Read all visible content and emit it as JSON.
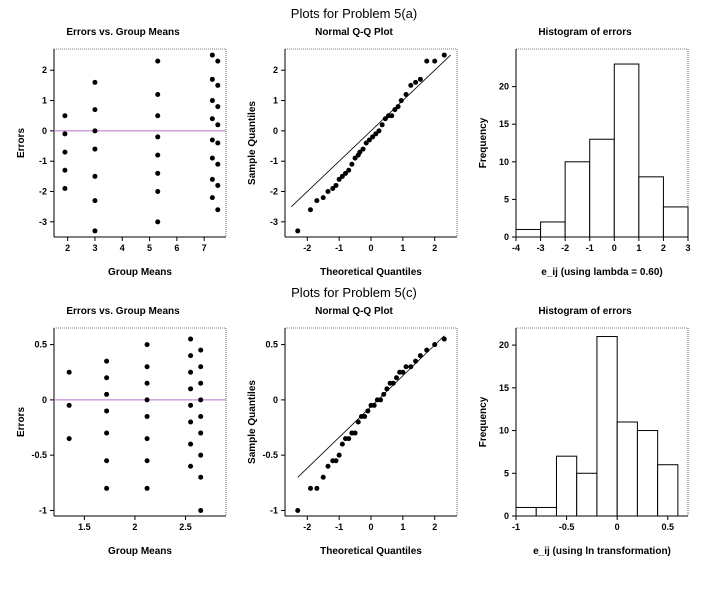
{
  "titles": {
    "section_a": "Plots for Problem 5(a)",
    "section_c": "Plots for Problem 5(c)"
  },
  "row_a": {
    "scatter": {
      "type": "scatter",
      "title": "Errors vs. Group Means",
      "xlabel": "Group Means",
      "ylabel": "Errors",
      "xlim": [
        1.5,
        7.8
      ],
      "ylim": [
        -3.5,
        2.7
      ],
      "xticks": [
        2,
        3,
        4,
        5,
        6,
        7
      ],
      "yticks": [
        -3,
        -2,
        -1,
        0,
        1,
        2
      ],
      "refline_y": 0,
      "refline_color": "#b96fcb",
      "point_color": "#000000",
      "point_r": 2.5,
      "groups_x": [
        1.9,
        3.0,
        5.3,
        7.3,
        7.5
      ],
      "points": [
        [
          1.9,
          -0.1
        ],
        [
          1.9,
          -0.7
        ],
        [
          1.9,
          0.5
        ],
        [
          1.9,
          -1.3
        ],
        [
          1.9,
          -1.9
        ],
        [
          3.0,
          1.6
        ],
        [
          3.0,
          0.7
        ],
        [
          3.0,
          0.0
        ],
        [
          3.0,
          -0.6
        ],
        [
          3.0,
          -1.5
        ],
        [
          3.0,
          -2.3
        ],
        [
          3.0,
          -3.3
        ],
        [
          5.3,
          2.3
        ],
        [
          5.3,
          1.2
        ],
        [
          5.3,
          0.5
        ],
        [
          5.3,
          -0.2
        ],
        [
          5.3,
          -0.8
        ],
        [
          5.3,
          -1.4
        ],
        [
          5.3,
          -2.0
        ],
        [
          5.3,
          -3.0
        ],
        [
          7.3,
          2.5
        ],
        [
          7.3,
          1.7
        ],
        [
          7.3,
          1.0
        ],
        [
          7.3,
          0.4
        ],
        [
          7.3,
          -0.3
        ],
        [
          7.3,
          -0.9
        ],
        [
          7.3,
          -1.6
        ],
        [
          7.3,
          -2.2
        ],
        [
          7.5,
          2.3
        ],
        [
          7.5,
          1.5
        ],
        [
          7.5,
          0.8
        ],
        [
          7.5,
          0.2
        ],
        [
          7.5,
          -0.4
        ],
        [
          7.5,
          -1.1
        ],
        [
          7.5,
          -1.8
        ],
        [
          7.5,
          -2.6
        ]
      ],
      "background_color": "#ffffff"
    },
    "qq": {
      "type": "scatter",
      "title": "Normal Q-Q Plot",
      "xlabel": "Theoretical Quantiles",
      "ylabel": "Sample Quantiles",
      "xlim": [
        -2.7,
        2.7
      ],
      "ylim": [
        -3.5,
        2.7
      ],
      "xticks": [
        -2,
        -1,
        0,
        1,
        2
      ],
      "yticks": [
        -3,
        -2,
        -1,
        0,
        1,
        2
      ],
      "line": [
        [
          -2.5,
          -2.5
        ],
        [
          2.5,
          2.5
        ]
      ],
      "line_color": "#000000",
      "point_color": "#000000",
      "point_r": 2.5,
      "points": [
        [
          -2.3,
          -3.3
        ],
        [
          -1.9,
          -2.6
        ],
        [
          -1.7,
          -2.3
        ],
        [
          -1.5,
          -2.2
        ],
        [
          -1.35,
          -2.0
        ],
        [
          -1.2,
          -1.9
        ],
        [
          -1.1,
          -1.8
        ],
        [
          -1.0,
          -1.6
        ],
        [
          -0.9,
          -1.5
        ],
        [
          -0.8,
          -1.4
        ],
        [
          -0.7,
          -1.3
        ],
        [
          -0.6,
          -1.1
        ],
        [
          -0.5,
          -0.9
        ],
        [
          -0.4,
          -0.8
        ],
        [
          -0.35,
          -0.7
        ],
        [
          -0.25,
          -0.6
        ],
        [
          -0.15,
          -0.4
        ],
        [
          -0.05,
          -0.3
        ],
        [
          0.05,
          -0.2
        ],
        [
          0.15,
          -0.1
        ],
        [
          0.25,
          0.0
        ],
        [
          0.35,
          0.2
        ],
        [
          0.45,
          0.4
        ],
        [
          0.55,
          0.5
        ],
        [
          0.65,
          0.5
        ],
        [
          0.75,
          0.7
        ],
        [
          0.85,
          0.8
        ],
        [
          0.95,
          1.0
        ],
        [
          1.1,
          1.2
        ],
        [
          1.25,
          1.5
        ],
        [
          1.4,
          1.6
        ],
        [
          1.55,
          1.7
        ],
        [
          1.75,
          2.3
        ],
        [
          2.0,
          2.3
        ],
        [
          2.3,
          2.5
        ]
      ],
      "background_color": "#ffffff"
    },
    "hist": {
      "type": "histogram",
      "title": "Histogram of errors",
      "xlabel": "e_ij (using lambda = 0.60)",
      "ylabel": "Frequency",
      "xlim": [
        -4,
        3
      ],
      "ylim": [
        0,
        25
      ],
      "xticks": [
        -4,
        -3,
        -2,
        -1,
        0,
        1,
        2,
        3
      ],
      "yticks": [
        0,
        5,
        10,
        15,
        20
      ],
      "bins": [
        [
          -4,
          -3,
          1
        ],
        [
          -3,
          -2,
          2
        ],
        [
          -2,
          -1,
          10
        ],
        [
          -1,
          0,
          13
        ],
        [
          0,
          1,
          23
        ],
        [
          1,
          2,
          8
        ],
        [
          2,
          3,
          4
        ]
      ],
      "bar_color": "#ffffff",
      "bar_border": "#000000",
      "background_color": "#ffffff"
    }
  },
  "row_c": {
    "scatter": {
      "type": "scatter",
      "title": "Errors vs. Group Means",
      "xlabel": "Group Means",
      "ylabel": "Errors",
      "xlim": [
        1.2,
        2.9
      ],
      "ylim": [
        -1.05,
        0.65
      ],
      "xticks": [
        1.5,
        2.0,
        2.5
      ],
      "yticks": [
        -1.0,
        -0.5,
        0.0,
        0.5
      ],
      "refline_y": 0,
      "refline_color": "#b96fcb",
      "point_color": "#000000",
      "point_r": 2.5,
      "points": [
        [
          1.35,
          0.25
        ],
        [
          1.35,
          -0.05
        ],
        [
          1.35,
          -0.35
        ],
        [
          1.72,
          0.35
        ],
        [
          1.72,
          0.2
        ],
        [
          1.72,
          0.05
        ],
        [
          1.72,
          -0.1
        ],
        [
          1.72,
          -0.3
        ],
        [
          1.72,
          -0.55
        ],
        [
          1.72,
          -0.8
        ],
        [
          2.12,
          0.5
        ],
        [
          2.12,
          0.3
        ],
        [
          2.12,
          0.15
        ],
        [
          2.12,
          0.0
        ],
        [
          2.12,
          -0.15
        ],
        [
          2.12,
          -0.35
        ],
        [
          2.12,
          -0.55
        ],
        [
          2.12,
          -0.8
        ],
        [
          2.55,
          0.55
        ],
        [
          2.55,
          0.4
        ],
        [
          2.55,
          0.25
        ],
        [
          2.55,
          0.1
        ],
        [
          2.55,
          -0.05
        ],
        [
          2.55,
          -0.2
        ],
        [
          2.55,
          -0.4
        ],
        [
          2.55,
          -0.6
        ],
        [
          2.65,
          0.45
        ],
        [
          2.65,
          0.3
        ],
        [
          2.65,
          0.15
        ],
        [
          2.65,
          0.0
        ],
        [
          2.65,
          -0.15
        ],
        [
          2.65,
          -0.3
        ],
        [
          2.65,
          -0.5
        ],
        [
          2.65,
          -0.7
        ],
        [
          2.65,
          -1.0
        ]
      ],
      "background_color": "#ffffff"
    },
    "qq": {
      "type": "scatter",
      "title": "Normal Q-Q Plot",
      "xlabel": "Theoretical Quantiles",
      "ylabel": "Sample Quantiles",
      "xlim": [
        -2.7,
        2.7
      ],
      "ylim": [
        -1.05,
        0.65
      ],
      "xticks": [
        -2,
        -1,
        0,
        1,
        2
      ],
      "yticks": [
        -1.0,
        -0.5,
        0.0,
        0.5
      ],
      "line": [
        [
          -2.3,
          -0.7
        ],
        [
          2.3,
          0.58
        ]
      ],
      "line_color": "#000000",
      "point_color": "#000000",
      "point_r": 2.5,
      "points": [
        [
          -2.3,
          -1.0
        ],
        [
          -1.9,
          -0.8
        ],
        [
          -1.7,
          -0.8
        ],
        [
          -1.5,
          -0.7
        ],
        [
          -1.35,
          -0.6
        ],
        [
          -1.2,
          -0.55
        ],
        [
          -1.1,
          -0.55
        ],
        [
          -1.0,
          -0.5
        ],
        [
          -0.9,
          -0.4
        ],
        [
          -0.8,
          -0.35
        ],
        [
          -0.7,
          -0.35
        ],
        [
          -0.6,
          -0.3
        ],
        [
          -0.5,
          -0.3
        ],
        [
          -0.4,
          -0.2
        ],
        [
          -0.3,
          -0.15
        ],
        [
          -0.2,
          -0.15
        ],
        [
          -0.1,
          -0.1
        ],
        [
          0.0,
          -0.05
        ],
        [
          0.1,
          -0.05
        ],
        [
          0.2,
          0.0
        ],
        [
          0.3,
          0.0
        ],
        [
          0.4,
          0.05
        ],
        [
          0.5,
          0.1
        ],
        [
          0.6,
          0.15
        ],
        [
          0.7,
          0.15
        ],
        [
          0.8,
          0.2
        ],
        [
          0.9,
          0.25
        ],
        [
          1.0,
          0.25
        ],
        [
          1.1,
          0.3
        ],
        [
          1.25,
          0.3
        ],
        [
          1.4,
          0.35
        ],
        [
          1.55,
          0.4
        ],
        [
          1.75,
          0.45
        ],
        [
          2.0,
          0.5
        ],
        [
          2.3,
          0.55
        ]
      ],
      "background_color": "#ffffff"
    },
    "hist": {
      "type": "histogram",
      "title": "Histogram of errors",
      "xlabel": "e_ij (using ln transformation)",
      "ylabel": "Frequency",
      "xlim": [
        -1.0,
        0.7
      ],
      "ylim": [
        0,
        22
      ],
      "xticks": [
        -1.0,
        -0.5,
        0.0,
        0.5
      ],
      "yticks": [
        0,
        5,
        10,
        15,
        20
      ],
      "bins": [
        [
          -1.0,
          -0.8,
          1
        ],
        [
          -0.8,
          -0.6,
          1
        ],
        [
          -0.6,
          -0.4,
          7
        ],
        [
          -0.4,
          -0.2,
          5
        ],
        [
          -0.2,
          0.0,
          21
        ],
        [
          0.0,
          0.2,
          11
        ],
        [
          0.2,
          0.4,
          10
        ],
        [
          0.4,
          0.6,
          6
        ]
      ],
      "bar_color": "#ffffff",
      "bar_border": "#000000",
      "background_color": "#ffffff"
    }
  }
}
